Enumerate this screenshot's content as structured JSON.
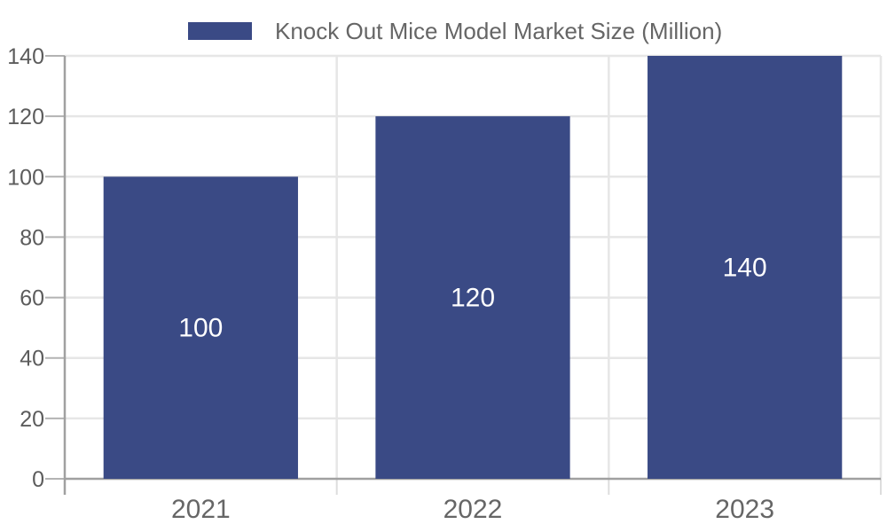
{
  "chart_data": {
    "type": "bar",
    "title": "Knock Out Mice Model Market Size (Million)",
    "categories": [
      "2021",
      "2022",
      "2023"
    ],
    "values": [
      100,
      120,
      140
    ],
    "bar_value_labels": [
      "100",
      "120",
      "140"
    ],
    "xlabel": "",
    "ylabel": "",
    "ylim": [
      0,
      140
    ],
    "yticks": [
      0,
      20,
      40,
      60,
      80,
      100,
      120,
      140
    ],
    "grid": true,
    "legend_position": "top",
    "colors": {
      "bar": "#3a4a85",
      "grid": "#e6e6e6",
      "axis": "#a0a0a0",
      "label_tick": "#b3b3b3",
      "x_tick": "#dddddd",
      "y_axis_label": "#5c5c5c",
      "x_axis_label": "#666666",
      "legend_text": "#666666",
      "bar_label": "#ffffff",
      "background": "#ffffff"
    }
  }
}
